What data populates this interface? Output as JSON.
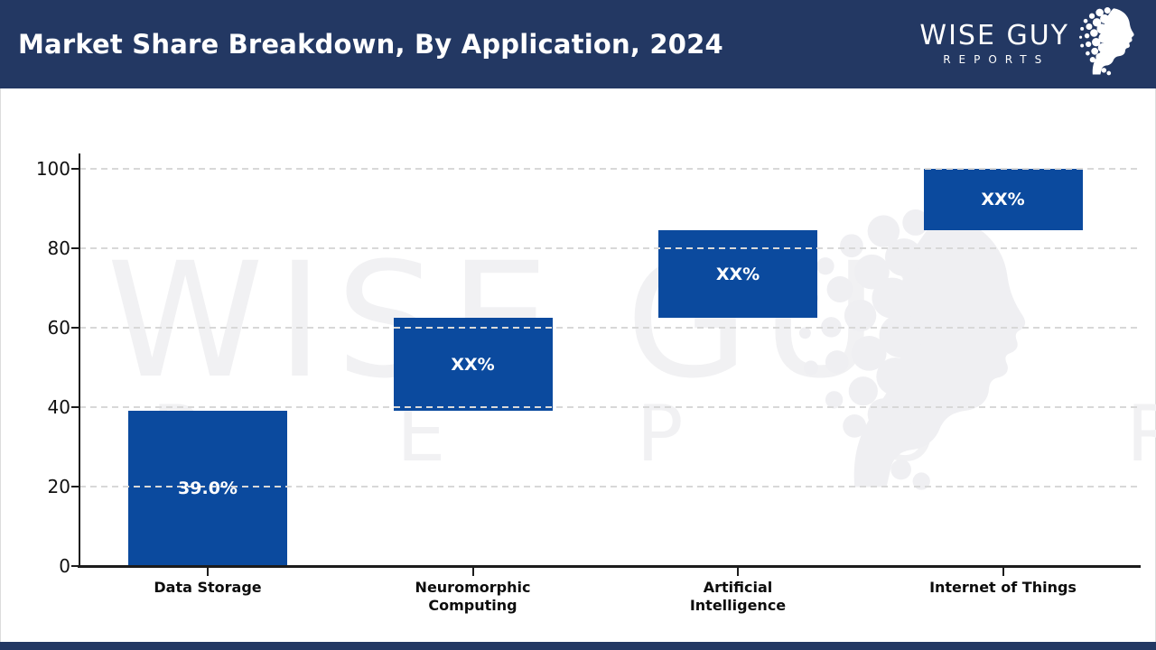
{
  "header": {
    "title": "Market Share Breakdown, By Application, 2024",
    "logo": {
      "name": "WISE GUY",
      "sub": "REPORTS"
    }
  },
  "watermark": {
    "name": "WISE GUY",
    "sub": "R E P O R T S"
  },
  "colors": {
    "header_bg": "#233863",
    "footer_bg": "#233863",
    "bar": "#0B4A9E",
    "grid": "#D8D8D8",
    "axis": "#1C1C1C",
    "tick_label": "#111111",
    "bar_label": "#FFFFFF",
    "watermark_text": "#F1F1F3",
    "watermark_head": "#EFEFF2"
  },
  "chart_data": {
    "type": "bar",
    "subtype": "waterfall-floating-bars",
    "title": "Market Share Breakdown, By Application, 2024",
    "categories": [
      "Data Storage",
      "Neuromorphic Computing",
      "Artificial Intelligence",
      "Internet of Things"
    ],
    "category_lines": [
      [
        "Data Storage"
      ],
      [
        "Neuromorphic",
        "Computing"
      ],
      [
        "Artificial",
        "Intelligence"
      ],
      [
        "Internet of Things"
      ]
    ],
    "segments": [
      {
        "category": "Data Storage",
        "from": 0,
        "to": 39,
        "label": "39.0%"
      },
      {
        "category": "Neuromorphic Computing",
        "from": 39,
        "to": 62.5,
        "label": "XX%"
      },
      {
        "category": "Artificial Intelligence",
        "from": 62.5,
        "to": 84.5,
        "label": "XX%"
      },
      {
        "category": "Internet of Things",
        "from": 84.5,
        "to": 100,
        "label": "XX%"
      }
    ],
    "yticks": [
      0,
      20,
      40,
      60,
      80,
      100
    ],
    "ylim": [
      0,
      104
    ],
    "xlabel": "",
    "ylabel": "",
    "grid": "horizontal-dashed",
    "gridlines_above_bars": true,
    "legend": "none"
  }
}
